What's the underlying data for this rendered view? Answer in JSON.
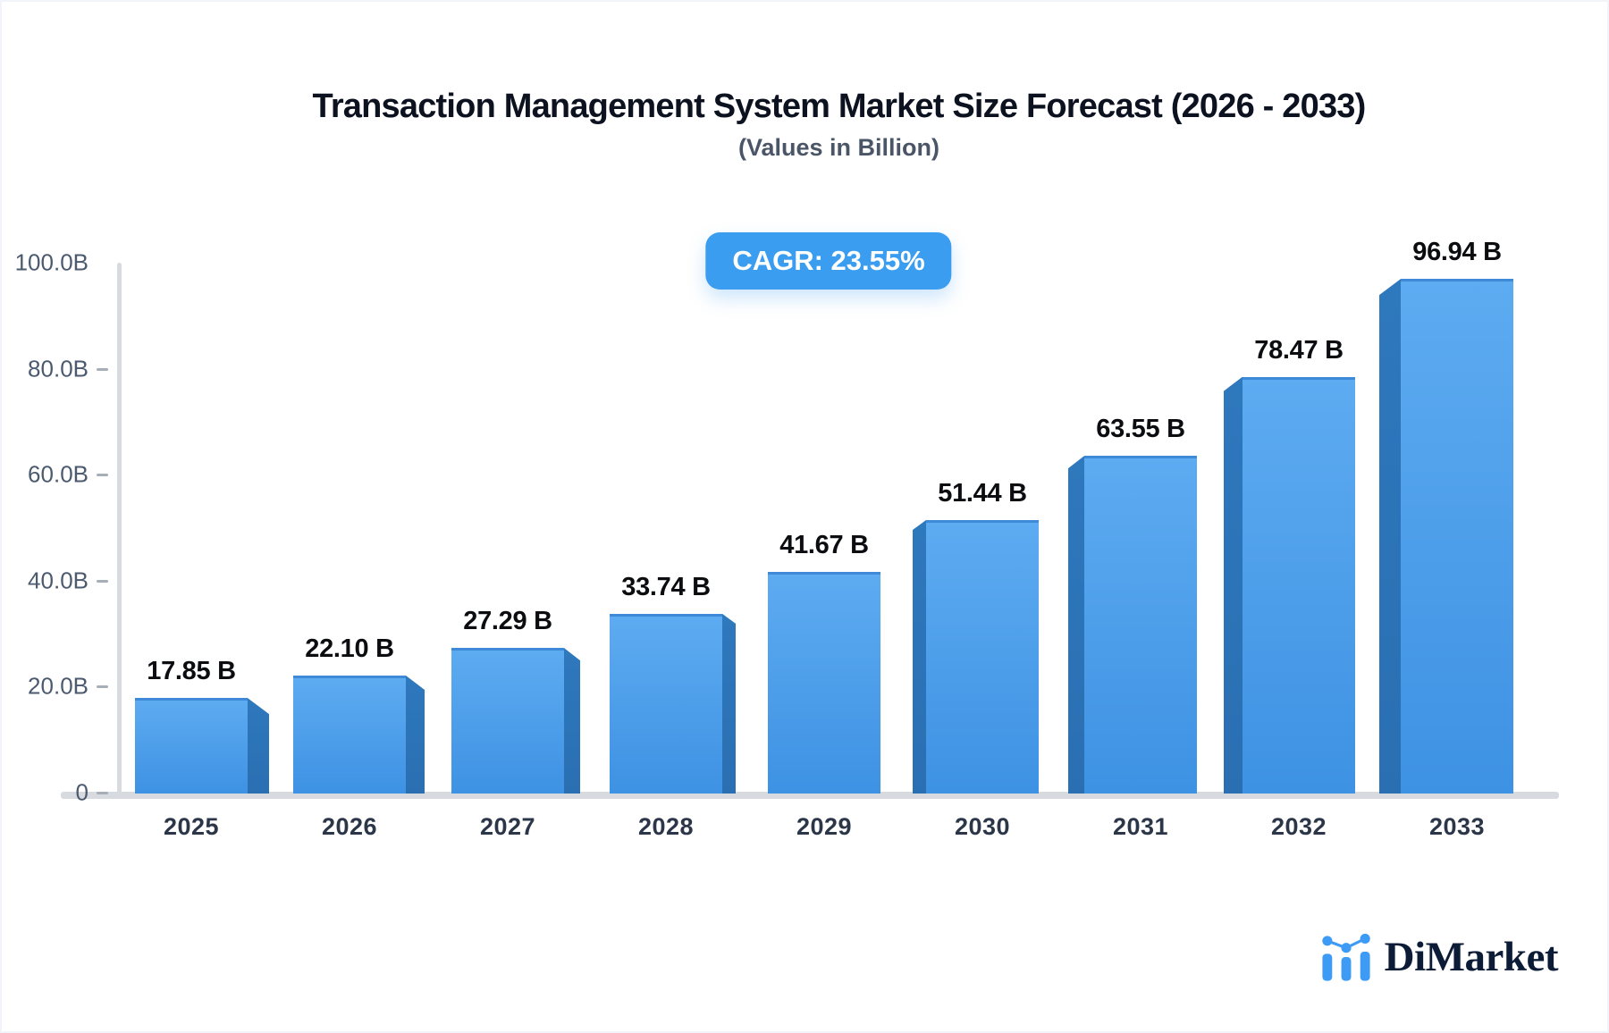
{
  "header": {
    "title": "Transaction Management System Market Size Forecast (2026 - 2033)",
    "subtitle": "(Values in Billion)"
  },
  "badge": {
    "label": "CAGR: 23.55%",
    "bg_color": "#3b9df0"
  },
  "chart_data": {
    "type": "bar",
    "title": "Transaction Management System Market Size Forecast (2026 - 2033)",
    "subtitle": "(Values in Billion)",
    "categories": [
      "2025",
      "2026",
      "2027",
      "2028",
      "2029",
      "2030",
      "2031",
      "2032",
      "2033"
    ],
    "values": [
      17.85,
      22.1,
      27.29,
      33.74,
      41.67,
      51.44,
      63.55,
      78.47,
      96.94
    ],
    "value_labels": [
      "17.85 B",
      "22.10 B",
      "27.29 B",
      "33.74 B",
      "41.67 B",
      "51.44 B",
      "63.55 B",
      "78.47 B",
      "96.94 B"
    ],
    "xlabel": "",
    "ylabel": "",
    "ylim": [
      0,
      100
    ],
    "y_tick_labels": [
      "100.0B",
      "80.0B",
      "60.0B",
      "40.0B",
      "20.0B",
      "0"
    ],
    "y_tick_values": [
      100,
      80,
      60,
      40,
      20,
      0
    ],
    "grid": "off",
    "legend": "none",
    "style": "3d-perspective-bars",
    "bar_color_top": "#5dabf1",
    "bar_color_bottom": "#3e92e3",
    "bar_side_color": "#2e78bd",
    "cagr_annotation": "CAGR: 23.55%"
  },
  "logo": {
    "text": "DiMarket",
    "icon": "bar-chart-logo-icon",
    "icon_color": "#3d9bf5"
  }
}
